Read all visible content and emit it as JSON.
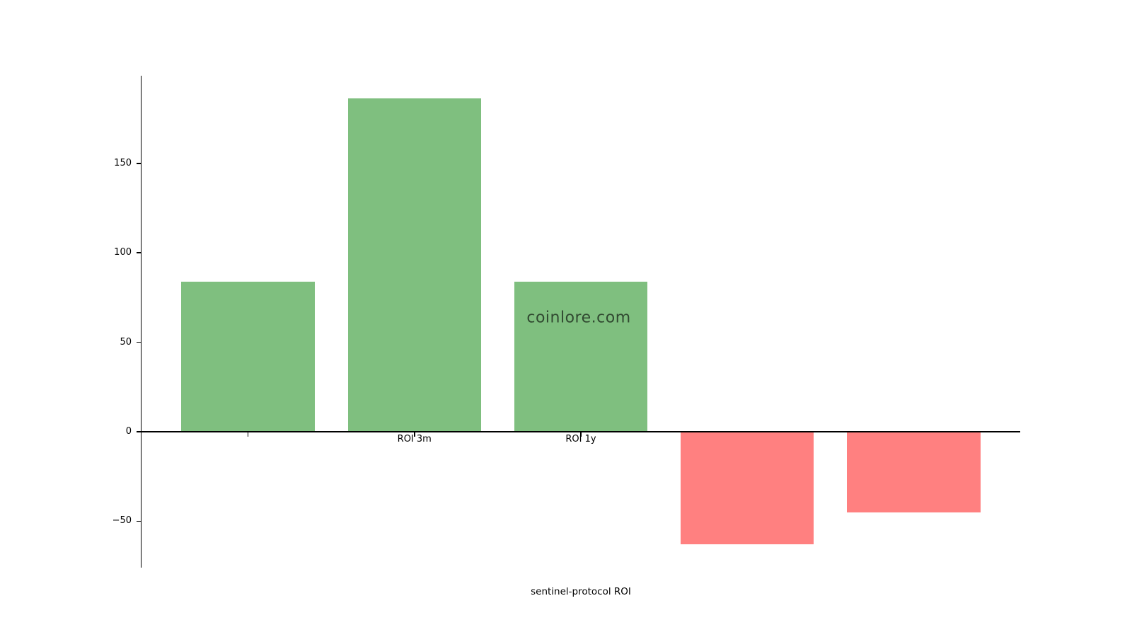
{
  "chart_data": {
    "type": "bar",
    "title": "sentinel-protocol ROI",
    "watermark": "coinlore.com",
    "categories": [
      "",
      "ROI 3m",
      "ROI 1y",
      "",
      ""
    ],
    "values": [
      83.8,
      186.3,
      83.8,
      -63.1,
      -45.0
    ],
    "bar_colors": [
      "#7fbf7f",
      "#7fbf7f",
      "#7fbf7f",
      "#ff8080",
      "#ff8080"
    ],
    "positive_color": "#7fbf7f",
    "negative_color": "#ff8080",
    "axis_color": "#000000",
    "tick_text_color": "#000000",
    "watermark_color": "rgba(0,0,0,0.62)",
    "ylim": [
      -76,
      199
    ],
    "yticks": [
      {
        "value": 150,
        "label": "150"
      },
      {
        "value": 100,
        "label": "100"
      },
      {
        "value": 50,
        "label": "50"
      },
      {
        "value": 0,
        "label": "0"
      },
      {
        "value": -50,
        "label": "−50"
      }
    ],
    "x_ticks_visible": [
      true,
      true,
      true,
      false,
      false
    ],
    "grid": false,
    "legend": null,
    "xlabel": "sentinel-protocol ROI",
    "ylabel": ""
  }
}
